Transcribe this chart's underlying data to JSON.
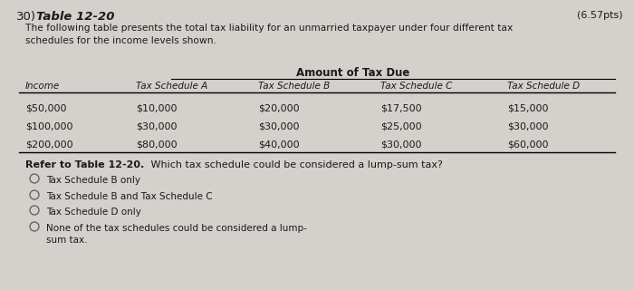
{
  "title_num": "30)",
  "title_bold": "Table 12-20",
  "subtitle": "The following table presents the total tax liability for an unmarried taxpayer under four different tax\nschedules for the income levels shown.",
  "points": "(6.57pts)",
  "amount_header": "Amount of Tax Due",
  "col_headers": [
    "Income",
    "Tax Schedule A",
    "Tax Schedule B",
    "Tax Schedule C",
    "Tax Schedule D"
  ],
  "rows": [
    [
      "$50,000",
      "$10,000",
      "$20,000",
      "$17,500",
      "$15,000"
    ],
    [
      "$100,000",
      "$30,000",
      "$30,000",
      "$25,000",
      "$30,000"
    ],
    [
      "$200,000",
      "$80,000",
      "$40,000",
      "$30,000",
      "$60,000"
    ]
  ],
  "question_bold": "Refer to Table 12-20.",
  "question_rest": " Which tax schedule could be considered a lump-sum tax?",
  "choices": [
    "Tax Schedule B only",
    "Tax Schedule B and Tax Schedule C",
    "Tax Schedule D only",
    "None of the tax schedules could be considered a lump-\nsum tax."
  ],
  "bg_color": "#d4d0cb",
  "text_color": "#1a1a1a",
  "font_size": 8.0,
  "title_font_size": 9.5
}
